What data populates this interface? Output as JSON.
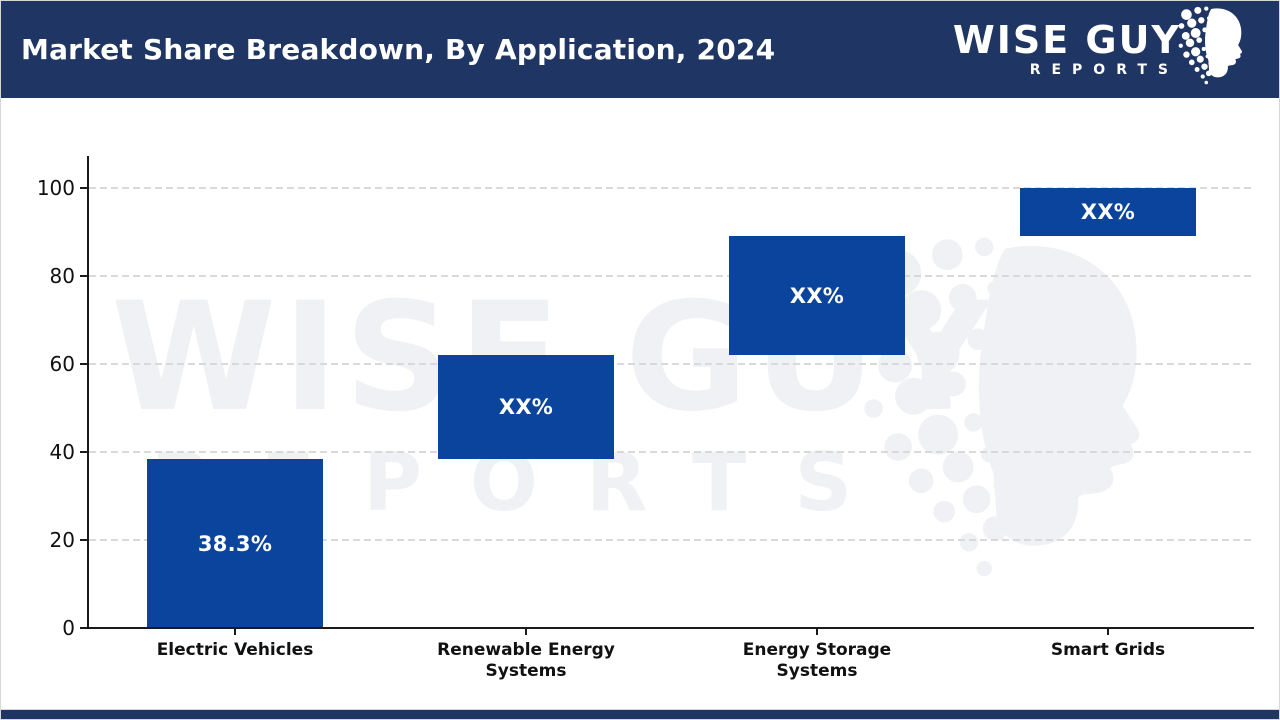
{
  "header": {
    "title": "Market Share Breakdown, By Application, 2024",
    "logo": {
      "line1": "WISE GUY",
      "line2": "REPORTS"
    }
  },
  "watermark": {
    "line1": "WISE GUY",
    "line2": "REPORTS"
  },
  "chart_data": {
    "type": "bar",
    "subtype": "floating-waterfall",
    "title": "Market Share Breakdown, By Application, 2024",
    "categories": [
      "Electric Vehicles",
      "Renewable Energy Systems",
      "Energy Storage Systems",
      "Smart Grids"
    ],
    "segments": [
      {
        "category": "Electric Vehicles",
        "start": 0,
        "end": 38.3,
        "label": "38.3%"
      },
      {
        "category": "Renewable Energy Systems",
        "start": 38.3,
        "end": 62,
        "label": "XX%"
      },
      {
        "category": "Energy Storage Systems",
        "start": 62,
        "end": 89,
        "label": "XX%"
      },
      {
        "category": "Smart Grids",
        "start": 89,
        "end": 100,
        "label": "XX%"
      }
    ],
    "ylim": [
      0,
      100
    ],
    "yticks": [
      0,
      20,
      40,
      60,
      80,
      100
    ],
    "grid": "horizontal-dashed",
    "legend": "none",
    "colors": {
      "bar": "#0a449c",
      "bar_label": "#ffffff",
      "header_navy": "#1f3563",
      "gridline": "#d9d9d9",
      "watermark": "#f0f1f4"
    }
  }
}
